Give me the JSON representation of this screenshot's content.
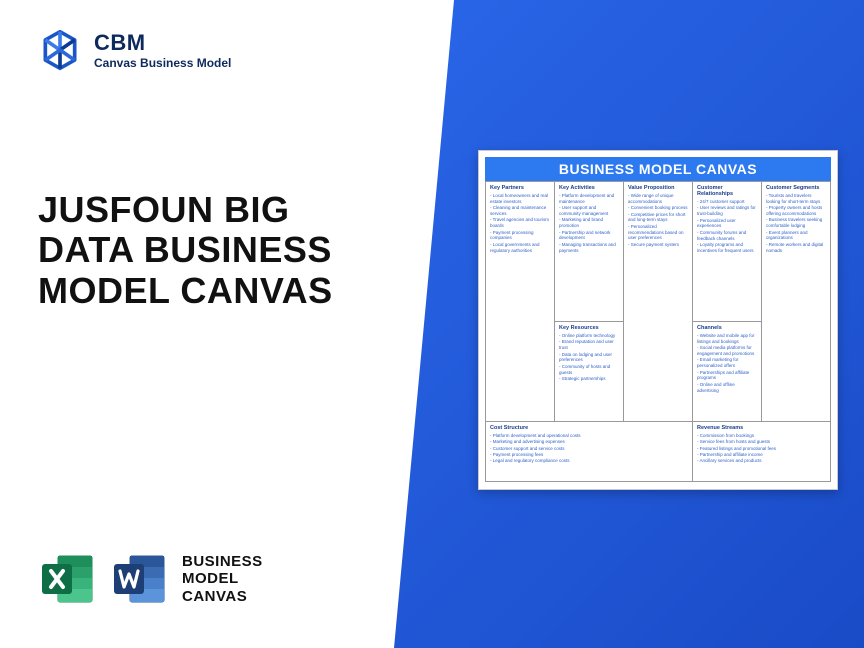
{
  "brand": {
    "abbr": "CBM",
    "name": "Canvas Business Model"
  },
  "headline": "JUSFOUN BIG DATA BUSINESS MODEL CANVAS",
  "file_label": "BUSINESS MODEL CANVAS",
  "canvas": {
    "title": "BUSINESS MODEL CANVAS",
    "blocks": {
      "kp": {
        "title": "Key Partners",
        "items": [
          "Local homeowners and real estate investors",
          "Cleaning and maintenance services",
          "Travel agencies and tourism boards",
          "Payment processing companies",
          "Local governments and regulatory authorities"
        ]
      },
      "ka": {
        "title": "Key Activities",
        "items": [
          "Platform development and maintenance",
          "User support and community management",
          "Marketing and brand promotion",
          "Partnership and network development",
          "Managing transactions and payments"
        ]
      },
      "kr": {
        "title": "Key Resources",
        "items": [
          "Online platform technology",
          "Brand reputation and user trust",
          "Data on lodging and user preferences",
          "Community of hosts and guests",
          "Strategic partnerships"
        ]
      },
      "vp": {
        "title": "Value Proposition",
        "items": [
          "Wide range of unique accommodations",
          "Convenient booking process",
          "Competitive prices for short and long-term stays",
          "Personalized recommendations based on user preferences",
          "Secure payment system"
        ]
      },
      "cr": {
        "title": "Customer Relationships",
        "items": [
          "24/7 customer support",
          "User reviews and ratings for trust-building",
          "Personalized user experiences",
          "Community forums and feedback channels",
          "Loyalty programs and incentives for frequent users"
        ]
      },
      "ch": {
        "title": "Channels",
        "items": [
          "Website and mobile app for listings and bookings",
          "Social media platforms for engagement and promotions",
          "Email marketing for personalized offers",
          "Partnerships and affiliate programs",
          "Online and offline advertising"
        ]
      },
      "cs": {
        "title": "Customer Segments",
        "items": [
          "Tourists and travelers looking for short-term stays",
          "Property owners and hosts offering accommodations",
          "Business travelers seeking comfortable lodging",
          "Event planners and organizations",
          "Remote workers and digital nomads"
        ]
      },
      "cost": {
        "title": "Cost Structure",
        "items": [
          "Platform development and operational costs",
          "Marketing and advertising expenses",
          "Customer support and service costs",
          "Payment processing fees",
          "Legal and regulatory compliance costs"
        ]
      },
      "rev": {
        "title": "Revenue Streams",
        "items": [
          "Commission from bookings",
          "Service fees from hosts and guests",
          "Featured listings and promotional fees",
          "Partnership and affiliate income",
          "Ancillary services and products"
        ]
      }
    }
  },
  "colors": {
    "blue_grad_start": "#2966e8",
    "blue_grad_end": "#1a4bc7",
    "excel": "#1e8e5a",
    "excel_dark": "#0e6e45",
    "word": "#2b579a",
    "word_dark": "#1e3f75",
    "canvas_header": "#2d7af0"
  }
}
